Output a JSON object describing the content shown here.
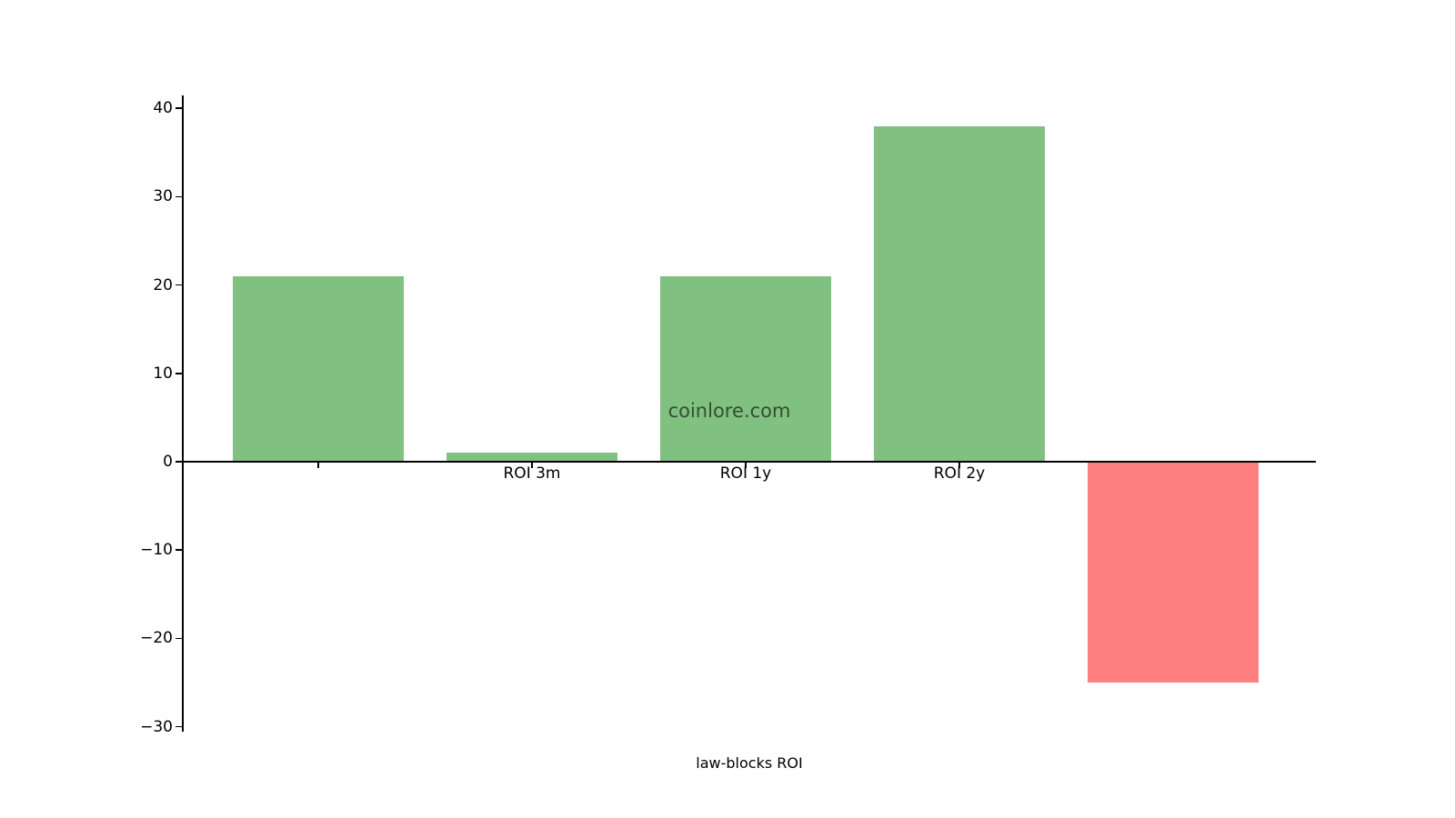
{
  "page": {
    "background_color": "#ffffff"
  },
  "chart_data": {
    "type": "bar",
    "title": "",
    "xlabel": "law-blocks ROI",
    "ylabel": "",
    "categories": [
      "",
      "ROI 3m",
      "ROI 1y",
      "ROI 2y",
      ""
    ],
    "values": [
      21,
      1,
      21,
      38,
      -25
    ],
    "bar_colors": [
      "#80c080",
      "#80c080",
      "#80c080",
      "#80c080",
      "#ff8080"
    ],
    "positive_color": "#80c080",
    "negative_color": "#ff8080",
    "y_tick_values": [
      40,
      30,
      20,
      10,
      0,
      -10,
      -20,
      -30
    ],
    "y_tick_labels": [
      "40",
      "30",
      "20",
      "10",
      "0",
      "−10",
      "−20",
      "−30"
    ],
    "ylim": [
      -30.7,
      41.6
    ],
    "grid": false,
    "legend_position": "none",
    "watermark": "coinlore.com",
    "axis_color": "#000000",
    "text_color": "#000000"
  }
}
